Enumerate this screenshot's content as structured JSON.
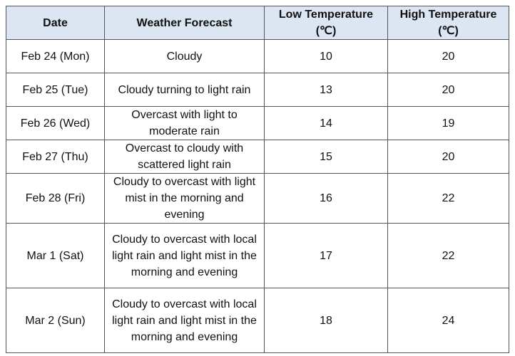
{
  "table": {
    "headers": [
      "Date",
      "Weather Forecast",
      [
        "Low Temperature",
        "(℃)"
      ],
      [
        "High Temperature",
        "(℃)"
      ]
    ],
    "rows": [
      [
        "Feb 24 (Mon)",
        "Cloudy",
        10,
        20
      ],
      [
        "Feb 25 (Tue)",
        "Cloudy turning to light rain",
        13,
        20
      ],
      [
        "Feb 26 (Wed)",
        "Overcast with light to moderate rain",
        14,
        19
      ],
      [
        "Feb 27 (Thu)",
        "Overcast to cloudy with scattered light rain",
        15,
        20
      ],
      [
        "Feb 28 (Fri)",
        "Cloudy to overcast with light mist in the morning and evening",
        16,
        22
      ],
      [
        "Mar 1 (Sat)",
        "Cloudy to overcast with local light rain and light mist in the morning and evening",
        17,
        22
      ],
      [
        "Mar 2 (Sun)",
        "Cloudy to overcast with local light rain and light mist in the morning and evening",
        18,
        24
      ]
    ]
  }
}
